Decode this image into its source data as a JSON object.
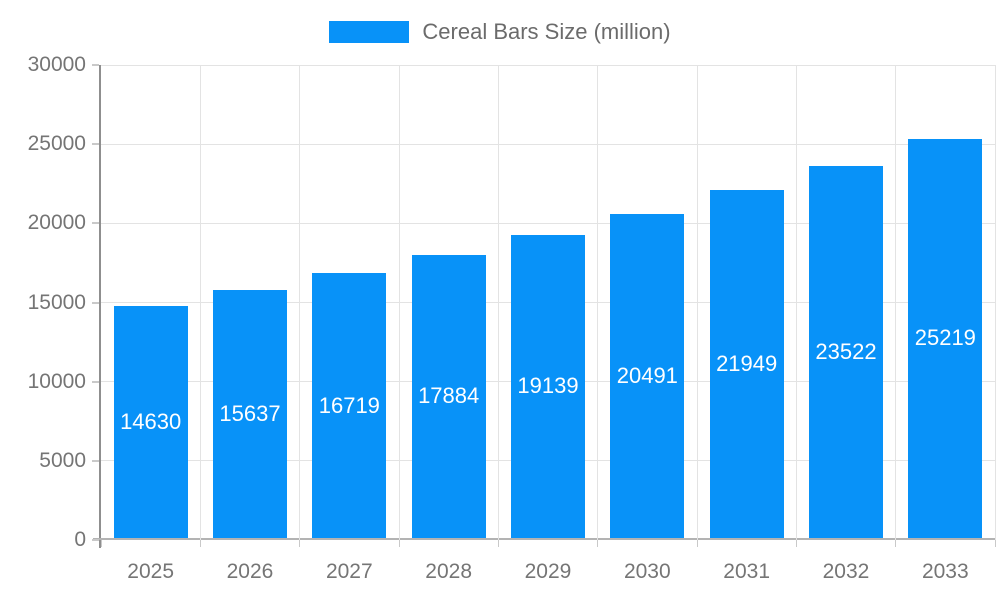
{
  "legend": {
    "label": "Cereal Bars Size (million)"
  },
  "colors": {
    "bar": "#0892f8",
    "gridline": "#e3e3e3",
    "x_axis_line": "#b3b3b3",
    "y_axis_line": "#8f8f8f",
    "tick": "#c9c9c9",
    "axis_text": "#757575",
    "legend_text": "#6b6b6b",
    "value_text": "#ffffff",
    "background": "#ffffff"
  },
  "chart_data": {
    "type": "bar",
    "title": "Cereal Bars Size (million)",
    "categories": [
      "2025",
      "2026",
      "2027",
      "2028",
      "2029",
      "2030",
      "2031",
      "2032",
      "2033"
    ],
    "values": [
      14630,
      15637,
      16719,
      17884,
      19139,
      20491,
      21949,
      23522,
      25219
    ],
    "xlabel": "",
    "ylabel": "",
    "ylim": [
      0,
      30000
    ],
    "yticks": [
      0,
      5000,
      10000,
      15000,
      20000,
      25000,
      30000
    ],
    "grid": true,
    "legend_position": "top-center",
    "value_labels": "inside-center"
  }
}
